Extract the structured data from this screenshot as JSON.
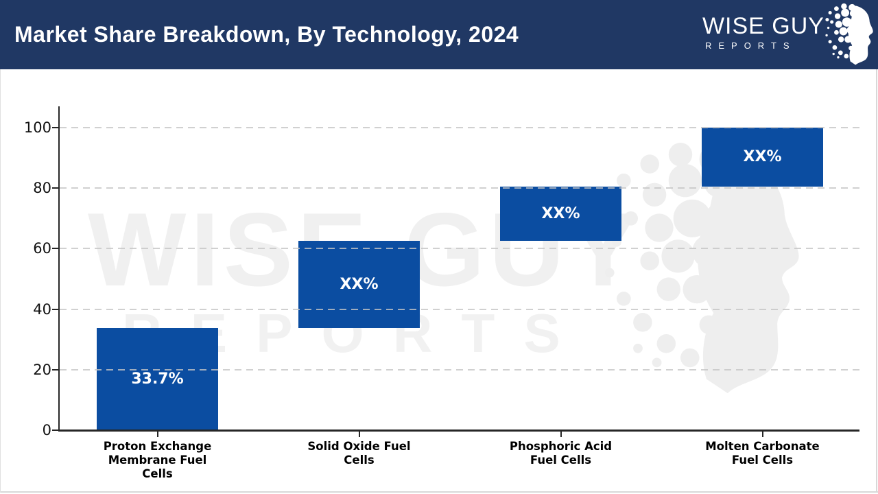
{
  "header": {
    "title": "Market Share Breakdown, By Technology, 2024",
    "logo": {
      "line1": "WISE GUY",
      "line2": "REPORTS",
      "icon": "dotted-head-profile-icon"
    }
  },
  "watermark": {
    "line1": "WISE GUY",
    "line2": "REPORTS",
    "icon": "dotted-head-profile-icon"
  },
  "colors": {
    "header_bg": "#203864",
    "bar_blue": "#0b4da1",
    "grid_gray": "#c5c5c5",
    "axis_dark": "#262626",
    "watermark_gray": "#efefef"
  },
  "chart_data": {
    "type": "bar",
    "subtype": "floating-waterfall",
    "title": "Market Share Breakdown, By Technology, 2024",
    "categories": [
      "Proton Exchange\nMembrane Fuel\nCells",
      "Solid Oxide Fuel\nCells",
      "Phosphoric Acid\nFuel Cells",
      "Molten Carbonate\nFuel Cells"
    ],
    "bars": [
      {
        "category": "Proton Exchange\nMembrane Fuel\nCells",
        "start": 0,
        "end": 33.7,
        "label": "33.7%"
      },
      {
        "category": "Solid Oxide Fuel\nCells",
        "start": 33.7,
        "end": 62.5,
        "label": "XX%"
      },
      {
        "category": "Phosphoric Acid\nFuel Cells",
        "start": 62.5,
        "end": 80.5,
        "label": "XX%"
      },
      {
        "category": "Molten Carbonate\nFuel Cells",
        "start": 80.5,
        "end": 100,
        "label": "XX%"
      }
    ],
    "ylim": [
      0,
      100
    ],
    "yticks": [
      0,
      20,
      40,
      60,
      80,
      100
    ],
    "xlabel": "",
    "ylabel": "",
    "grid": "horizontal-dashed-over-bars",
    "legend": "none",
    "bar_color": "#0b4da1"
  }
}
